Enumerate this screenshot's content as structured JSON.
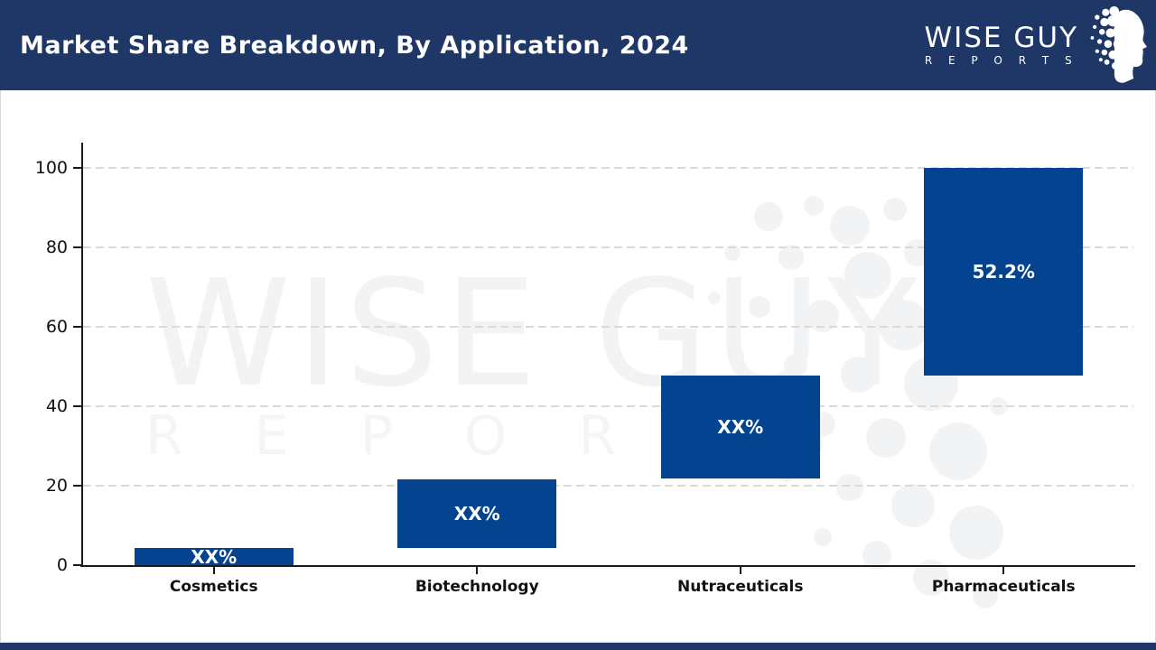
{
  "header": {
    "title": "Market Share Breakdown, By Application, 2024",
    "logo": {
      "wordmark": "WISE GUY",
      "subtext": "R E P O R T S"
    }
  },
  "watermark": {
    "wordmark": "WISE GUY",
    "subtext": "R E P O R T S"
  },
  "chart_data": {
    "type": "bar",
    "subtype": "floating-waterfall",
    "title": "Market Share Breakdown, By Application, 2024",
    "categories": [
      "Cosmetics",
      "Biotechnology",
      "Nutraceuticals",
      "Pharmaceuticals"
    ],
    "segments": [
      {
        "category": "Cosmetics",
        "from": 0,
        "to": 4.3,
        "value": 4.3,
        "label": "XX%"
      },
      {
        "category": "Biotechnology",
        "from": 4.4,
        "to": 21.6,
        "value": 17.2,
        "label": "XX%"
      },
      {
        "category": "Nutraceuticals",
        "from": 21.8,
        "to": 47.8,
        "value": 26.0,
        "label": "XX%"
      },
      {
        "category": "Pharmaceuticals",
        "from": 47.8,
        "to": 100,
        "value": 52.2,
        "label": "52.2%"
      }
    ],
    "xlabel": "",
    "ylabel": "",
    "ylim": [
      0,
      100
    ],
    "yticks": [
      0,
      20,
      40,
      60,
      80,
      100
    ],
    "grid": "horizontal-dashed",
    "legend": "none",
    "bar_color": "#04438f",
    "bar_label_color": "#ffffff"
  },
  "colors": {
    "header_bg": "#1f3767",
    "footer_bg": "#1f3767",
    "bar": "#04438f",
    "axis": "#1a1a1a",
    "gridline": "#dadada",
    "watermark": "#f2f3f5",
    "page_bg": "#ffffff"
  }
}
